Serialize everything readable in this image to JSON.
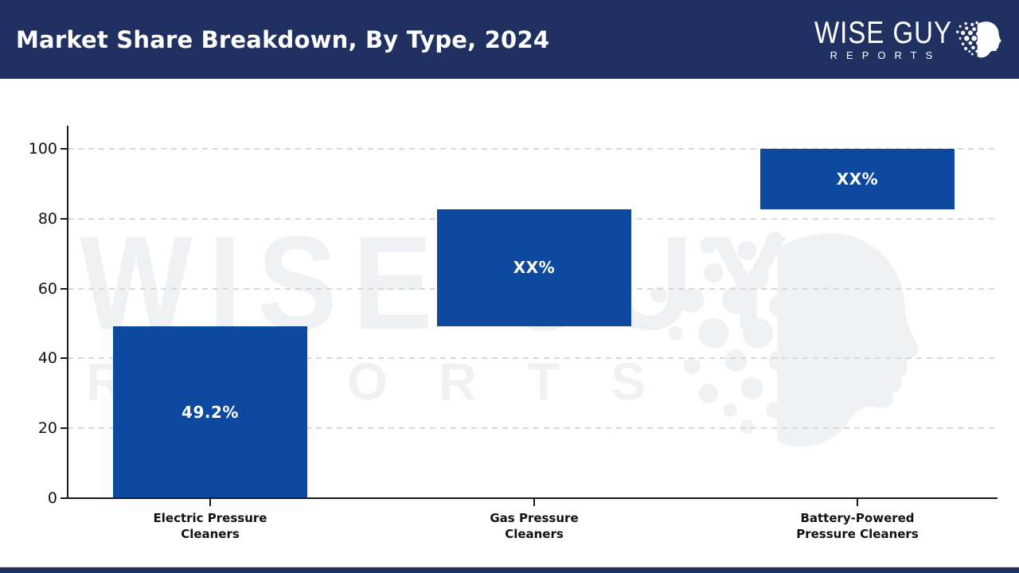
{
  "header": {
    "title": "Market Share Breakdown, By Type, 2024",
    "logo": {
      "primary": "WISE GUY",
      "secondary": "REPORTS"
    }
  },
  "watermark": {
    "primary": "WISE GUY",
    "secondary": "REPORTS"
  },
  "chart_data": {
    "type": "bar",
    "subtype": "waterfall",
    "title": "Market Share Breakdown, By Type, 2024",
    "xlabel": "",
    "ylabel": "",
    "ylim": [
      0,
      100
    ],
    "yticks": [
      0,
      20,
      40,
      60,
      80,
      100
    ],
    "grid": "horizontal-dashed",
    "legend": "none",
    "bar_color": "#0d4a9f",
    "value_label_color": "#ffffff",
    "categories": [
      "Electric Pressure Cleaners",
      "Gas Pressure Cleaners",
      "Battery-Powered Pressure Cleaners"
    ],
    "bars": [
      {
        "category": "Electric Pressure Cleaners",
        "category_lines": [
          "Electric Pressure",
          "Cleaners"
        ],
        "start": 0,
        "end": 49.2,
        "value": "49.2",
        "label": "49.2%"
      },
      {
        "category": "Gas Pressure Cleaners",
        "category_lines": [
          "Gas Pressure",
          "Cleaners"
        ],
        "start": 49.2,
        "end": 82.8,
        "value": "XX",
        "label": "XX%"
      },
      {
        "category": "Battery-Powered Pressure Cleaners",
        "category_lines": [
          "Battery-Powered",
          "Pressure Cleaners"
        ],
        "start": 82.8,
        "end": 100,
        "value": "XX",
        "label": "XX%"
      }
    ]
  },
  "colors": {
    "header_bg": "#203161",
    "footer_bg": "#203161",
    "bar": "#0d4a9f",
    "grid": "#d8d8d8",
    "axis": "#1a1a1a",
    "watermark": "#f0f1f3"
  }
}
